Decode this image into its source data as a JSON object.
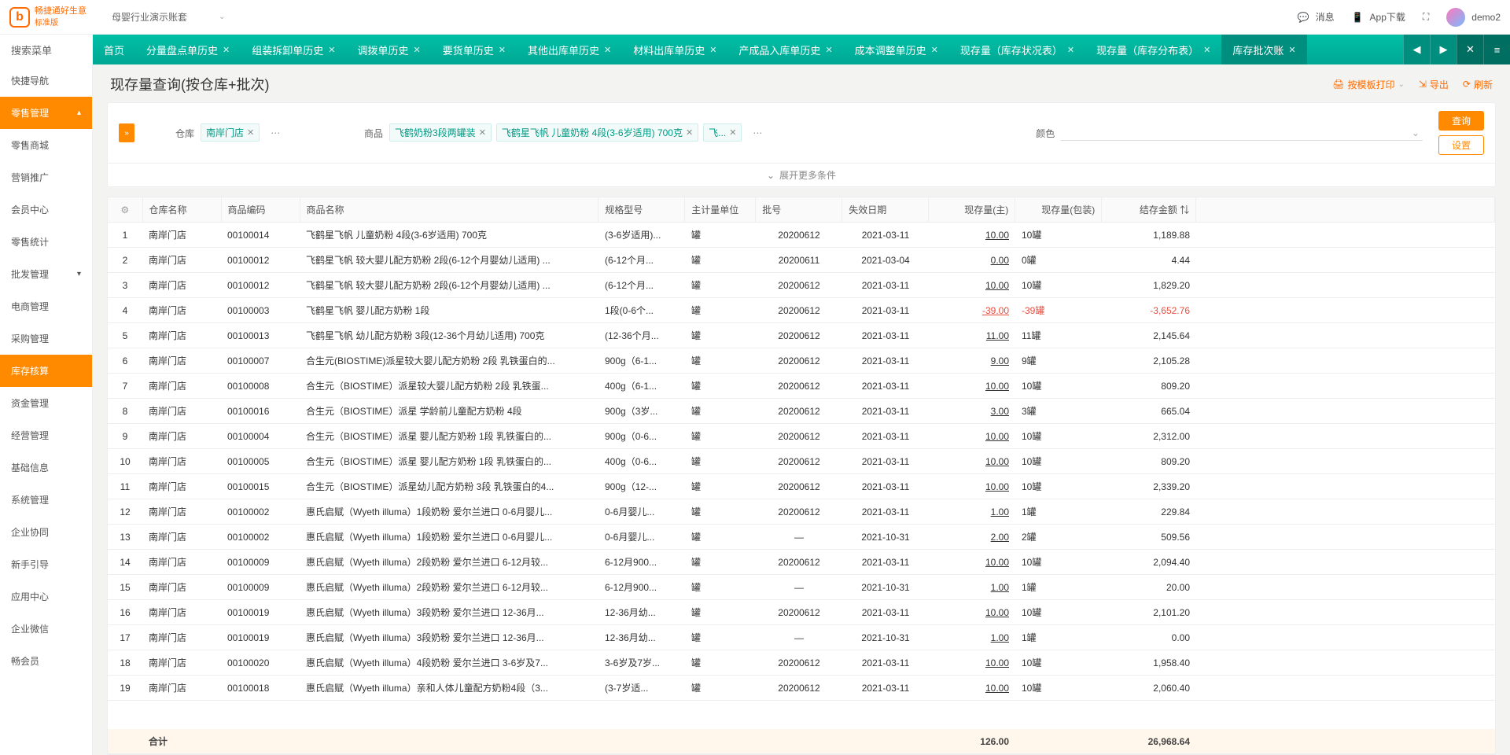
{
  "brand": {
    "logo_char": "b",
    "name": "畅捷通好生意",
    "edition": "标准版"
  },
  "account_selector": "母婴行业演示账套",
  "topbar": {
    "msg": "消息",
    "download": "App下载",
    "user": "demo2"
  },
  "sidebar_head": "搜索菜单",
  "tabs": [
    {
      "label": "首页",
      "closable": false
    },
    {
      "label": "分量盘点单历史",
      "closable": true
    },
    {
      "label": "组装拆卸单历史",
      "closable": true
    },
    {
      "label": "调拨单历史",
      "closable": true
    },
    {
      "label": "要货单历史",
      "closable": true
    },
    {
      "label": "其他出库单历史",
      "closable": true
    },
    {
      "label": "材料出库单历史",
      "closable": true
    },
    {
      "label": "产成品入库单历史",
      "closable": true
    },
    {
      "label": "成本调整单历史",
      "closable": true
    },
    {
      "label": "现存量（库存状况表）",
      "closable": true
    },
    {
      "label": "现存量（库存分布表）",
      "closable": true
    },
    {
      "label": "库存批次账",
      "closable": true,
      "active": true
    }
  ],
  "sidebar": [
    {
      "label": "快捷导航"
    },
    {
      "label": "零售管理",
      "orange": true,
      "caret": "▴"
    },
    {
      "label": "零售商城",
      "sub": true
    },
    {
      "label": "营销推广",
      "sub": true
    },
    {
      "label": "会员中心",
      "sub": true
    },
    {
      "label": "零售统计",
      "sub": true
    },
    {
      "label": "批发管理",
      "caret": "▾"
    },
    {
      "label": "电商管理"
    },
    {
      "label": "采购管理"
    },
    {
      "label": "库存核算",
      "orange": true
    },
    {
      "label": "资金管理"
    },
    {
      "label": "经营管理"
    },
    {
      "label": "基础信息"
    },
    {
      "label": "系统管理"
    },
    {
      "label": "企业协同"
    },
    {
      "label": "新手引导"
    },
    {
      "label": "应用中心"
    },
    {
      "label": "企业微信"
    },
    {
      "label": "畅会员"
    }
  ],
  "page": {
    "title": "现存量查询(按仓库+批次)",
    "print": "按模板打印",
    "export": "导出",
    "refresh": "刷新"
  },
  "filters": {
    "warehouse_label": "仓库",
    "warehouse_chips": [
      "南岸门店"
    ],
    "product_label": "商品",
    "product_chips": [
      "飞鹤奶粉3段两罐装",
      "飞鹤星飞帆 儿童奶粉 4段(3-6岁适用) 700克",
      "飞..."
    ],
    "color_label": "颜色",
    "expand": "展开更多条件",
    "query": "查询",
    "settings": "设置"
  },
  "columns": [
    "",
    "仓库名称",
    "商品编码",
    "商品名称",
    "规格型号",
    "主计量单位",
    "批号",
    "失效日期",
    "现存量(主)",
    "现存量(包装)",
    "结存金额",
    ""
  ],
  "settings_icon": "⚙",
  "totals": {
    "label": "合计",
    "qty": "126.00",
    "amount": "26,968.64"
  },
  "rows": [
    {
      "n": 1,
      "wh": "南岸门店",
      "code": "00100014",
      "name": "飞鹤星飞帆 儿童奶粉 4段(3-6岁适用) 700克",
      "spec": "(3-6岁适用)...",
      "uom": "罐",
      "batch": "20200612",
      "exp": "2021-03-11",
      "qty": "10.00",
      "pack": "10罐",
      "amt": "1,189.88"
    },
    {
      "n": 2,
      "wh": "南岸门店",
      "code": "00100012",
      "name": "飞鹤星飞帆 较大婴儿配方奶粉 2段(6-12个月婴幼儿适用) ...",
      "spec": "(6-12个月...",
      "uom": "罐",
      "batch": "20200611",
      "exp": "2021-03-04",
      "qty": "0.00",
      "pack": "0罐",
      "amt": "4.44"
    },
    {
      "n": 3,
      "wh": "南岸门店",
      "code": "00100012",
      "name": "飞鹤星飞帆 较大婴儿配方奶粉 2段(6-12个月婴幼儿适用) ...",
      "spec": "(6-12个月...",
      "uom": "罐",
      "batch": "20200612",
      "exp": "2021-03-11",
      "qty": "10.00",
      "pack": "10罐",
      "amt": "1,829.20"
    },
    {
      "n": 4,
      "wh": "南岸门店",
      "code": "00100003",
      "name": "飞鹤星飞帆 婴儿配方奶粉 1段",
      "spec": "1段(0-6个...",
      "uom": "罐",
      "batch": "20200612",
      "exp": "2021-03-11",
      "qty": "-39.00",
      "pack": "-39罐",
      "amt": "-3,652.76",
      "neg": true
    },
    {
      "n": 5,
      "wh": "南岸门店",
      "code": "00100013",
      "name": "飞鹤星飞帆 幼儿配方奶粉 3段(12-36个月幼儿适用) 700克",
      "spec": "(12-36个月...",
      "uom": "罐",
      "batch": "20200612",
      "exp": "2021-03-11",
      "qty": "11.00",
      "pack": "11罐",
      "amt": "2,145.64"
    },
    {
      "n": 6,
      "wh": "南岸门店",
      "code": "00100007",
      "name": "合生元(BIOSTIME)派星较大婴儿配方奶粉 2段 乳铁蛋白的...",
      "spec": "900g（6-1...",
      "uom": "罐",
      "batch": "20200612",
      "exp": "2021-03-11",
      "qty": "9.00",
      "pack": "9罐",
      "amt": "2,105.28"
    },
    {
      "n": 7,
      "wh": "南岸门店",
      "code": "00100008",
      "name": "合生元（BIOSTIME）派星较大婴儿配方奶粉 2段 乳铁蛋...",
      "spec": "400g（6-1...",
      "uom": "罐",
      "batch": "20200612",
      "exp": "2021-03-11",
      "qty": "10.00",
      "pack": "10罐",
      "amt": "809.20"
    },
    {
      "n": 8,
      "wh": "南岸门店",
      "code": "00100016",
      "name": "合生元（BIOSTIME）派星 学龄前儿童配方奶粉 4段",
      "spec": "900g（3岁...",
      "uom": "罐",
      "batch": "20200612",
      "exp": "2021-03-11",
      "qty": "3.00",
      "pack": "3罐",
      "amt": "665.04"
    },
    {
      "n": 9,
      "wh": "南岸门店",
      "code": "00100004",
      "name": "合生元（BIOSTIME）派星 婴儿配方奶粉 1段 乳铁蛋白的...",
      "spec": "900g（0-6...",
      "uom": "罐",
      "batch": "20200612",
      "exp": "2021-03-11",
      "qty": "10.00",
      "pack": "10罐",
      "amt": "2,312.00"
    },
    {
      "n": 10,
      "wh": "南岸门店",
      "code": "00100005",
      "name": "合生元（BIOSTIME）派星 婴儿配方奶粉 1段 乳铁蛋白的...",
      "spec": "400g（0-6...",
      "uom": "罐",
      "batch": "20200612",
      "exp": "2021-03-11",
      "qty": "10.00",
      "pack": "10罐",
      "amt": "809.20"
    },
    {
      "n": 11,
      "wh": "南岸门店",
      "code": "00100015",
      "name": "合生元（BIOSTIME）派星幼儿配方奶粉 3段 乳铁蛋白的4...",
      "spec": "900g（12-...",
      "uom": "罐",
      "batch": "20200612",
      "exp": "2021-03-11",
      "qty": "10.00",
      "pack": "10罐",
      "amt": "2,339.20"
    },
    {
      "n": 12,
      "wh": "南岸门店",
      "code": "00100002",
      "name": "惠氏启赋（Wyeth illuma）1段奶粉 爱尔兰进口 0-6月婴儿...",
      "spec": "0-6月婴儿...",
      "uom": "罐",
      "batch": "20200612",
      "exp": "2021-03-11",
      "qty": "1.00",
      "pack": "1罐",
      "amt": "229.84"
    },
    {
      "n": 13,
      "wh": "南岸门店",
      "code": "00100002",
      "name": "惠氏启赋（Wyeth illuma）1段奶粉 爱尔兰进口 0-6月婴儿...",
      "spec": "0-6月婴儿...",
      "uom": "罐",
      "batch": "—",
      "exp": "2021-10-31",
      "qty": "2.00",
      "pack": "2罐",
      "amt": "509.56"
    },
    {
      "n": 14,
      "wh": "南岸门店",
      "code": "00100009",
      "name": "惠氏启赋（Wyeth illuma）2段奶粉 爱尔兰进口 6-12月较...",
      "spec": "6-12月900...",
      "uom": "罐",
      "batch": "20200612",
      "exp": "2021-03-11",
      "qty": "10.00",
      "pack": "10罐",
      "amt": "2,094.40"
    },
    {
      "n": 15,
      "wh": "南岸门店",
      "code": "00100009",
      "name": "惠氏启赋（Wyeth illuma）2段奶粉 爱尔兰进口 6-12月较...",
      "spec": "6-12月900...",
      "uom": "罐",
      "batch": "—",
      "exp": "2021-10-31",
      "qty": "1.00",
      "pack": "1罐",
      "amt": "20.00"
    },
    {
      "n": 16,
      "wh": "南岸门店",
      "code": "00100019",
      "name": "惠氏启赋（Wyeth illuma）3段奶粉 爱尔兰进口 12-36月...",
      "spec": "12-36月幼...",
      "uom": "罐",
      "batch": "20200612",
      "exp": "2021-03-11",
      "qty": "10.00",
      "pack": "10罐",
      "amt": "2,101.20"
    },
    {
      "n": 17,
      "wh": "南岸门店",
      "code": "00100019",
      "name": "惠氏启赋（Wyeth illuma）3段奶粉 爱尔兰进口 12-36月...",
      "spec": "12-36月幼...",
      "uom": "罐",
      "batch": "—",
      "exp": "2021-10-31",
      "qty": "1.00",
      "pack": "1罐",
      "amt": "0.00"
    },
    {
      "n": 18,
      "wh": "南岸门店",
      "code": "00100020",
      "name": "惠氏启赋（Wyeth illuma）4段奶粉 爱尔兰进口 3-6岁及7...",
      "spec": "3-6岁及7岁...",
      "uom": "罐",
      "batch": "20200612",
      "exp": "2021-03-11",
      "qty": "10.00",
      "pack": "10罐",
      "amt": "1,958.40"
    },
    {
      "n": 19,
      "wh": "南岸门店",
      "code": "00100018",
      "name": "惠氏启赋（Wyeth illuma）亲和人体儿童配方奶粉4段（3...",
      "spec": "(3-7岁适...",
      "uom": "罐",
      "batch": "20200612",
      "exp": "2021-03-11",
      "qty": "10.00",
      "pack": "10罐",
      "amt": "2,060.40"
    }
  ]
}
